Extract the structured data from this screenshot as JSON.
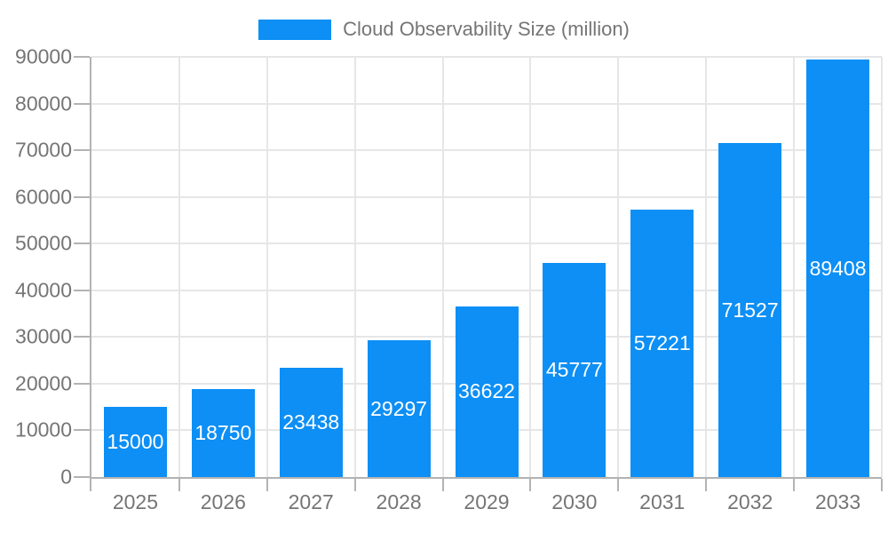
{
  "chart_data": {
    "type": "bar",
    "title": "Cloud Observability Size (million)",
    "categories": [
      "2025",
      "2026",
      "2027",
      "2028",
      "2029",
      "2030",
      "2031",
      "2032",
      "2033"
    ],
    "values": [
      15000,
      18750,
      23438,
      29297,
      36622,
      45777,
      57221,
      71527,
      89408
    ],
    "ylim": [
      0,
      90000
    ],
    "ytick_step": 10000,
    "yticks": [
      0,
      10000,
      20000,
      30000,
      40000,
      50000,
      60000,
      70000,
      80000,
      90000
    ],
    "grid": "horizontal and vertical category boundaries",
    "legend_position": "top-center",
    "bar_label_position": "centered-inside",
    "colors": {
      "bar": "#0d8ff5",
      "bar_label": "#ffffff",
      "axis_line": "#b3b3b3",
      "tick": "#b3b3b3",
      "grid": "#e6e6e6",
      "text": "#757575",
      "background": "#ffffff"
    }
  }
}
